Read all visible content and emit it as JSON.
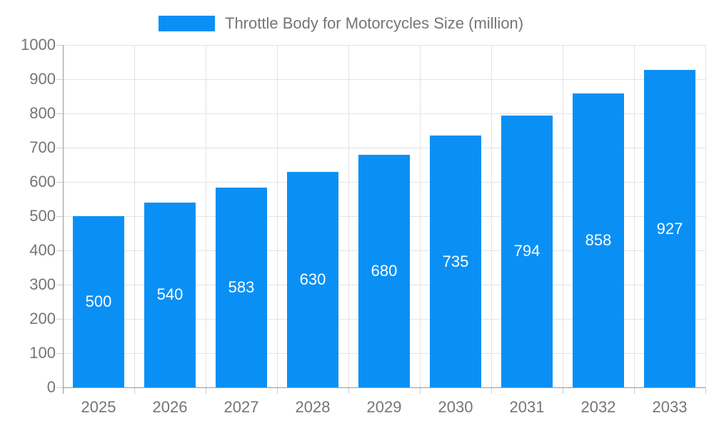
{
  "legend": {
    "label": "Throttle Body for Motorcycles Size (million)"
  },
  "chart_data": {
    "type": "bar",
    "title": "Throttle Body for Motorcycles Size (million)",
    "categories": [
      "2025",
      "2026",
      "2027",
      "2028",
      "2029",
      "2030",
      "2031",
      "2032",
      "2033"
    ],
    "values": [
      500,
      540,
      583,
      630,
      680,
      735,
      794,
      858,
      927
    ],
    "series": [
      {
        "name": "Throttle Body for Motorcycles Size (million)",
        "values": [
          500,
          540,
          583,
          630,
          680,
          735,
          794,
          858,
          927
        ]
      }
    ],
    "xlabel": "",
    "ylabel": "",
    "ylim": [
      0,
      1000
    ],
    "ytick_step": 100,
    "ytick_labels": [
      "0",
      "100",
      "200",
      "300",
      "400",
      "500",
      "600",
      "700",
      "800",
      "900",
      "1000"
    ],
    "grid": "on",
    "legend_position": "top-center",
    "value_labels": "inside-center",
    "colors": {
      "bar": "#0a90f5",
      "bar_label": "#ffffff",
      "axis_line": "#999999",
      "grid_line": "#e3e3e3",
      "tick_line": "#cccccc",
      "axis_text": "#757575",
      "legend_text": "#757575",
      "background": "#ffffff"
    }
  }
}
